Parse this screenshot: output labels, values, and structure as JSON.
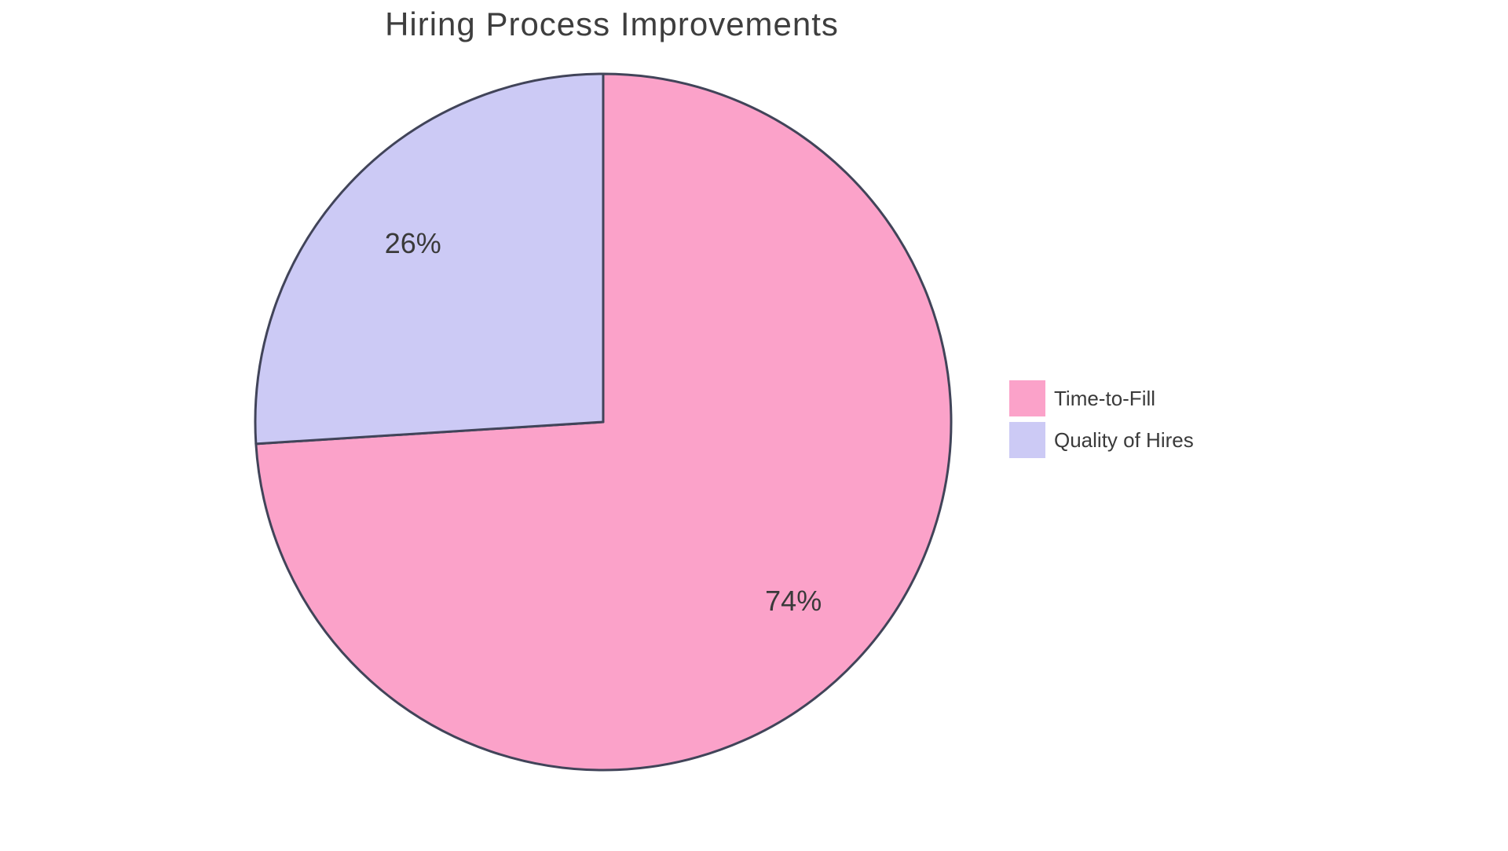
{
  "page": {
    "background": "#FFFFFF"
  },
  "chart_data": {
    "type": "pie",
    "title": "Hiring Process Improvements",
    "slices": [
      {
        "label": "Time-to-Fill",
        "value": 74,
        "percent_label": "74%",
        "color": "#FBA2C9"
      },
      {
        "label": "Quality of Hires",
        "value": 26,
        "percent_label": "26%",
        "color": "#CCCAF5"
      }
    ],
    "start_angle": "12-o-clock",
    "direction": "clockwise",
    "legend_position": "right",
    "legend_entries": [
      "Time-to-Fill",
      "Quality of Hires"
    ],
    "colors": {
      "stroke": "#414459",
      "title_text": "#3E3E3E",
      "label_text": "#3A3A3A",
      "legend_text": "#3A3A3A"
    }
  }
}
